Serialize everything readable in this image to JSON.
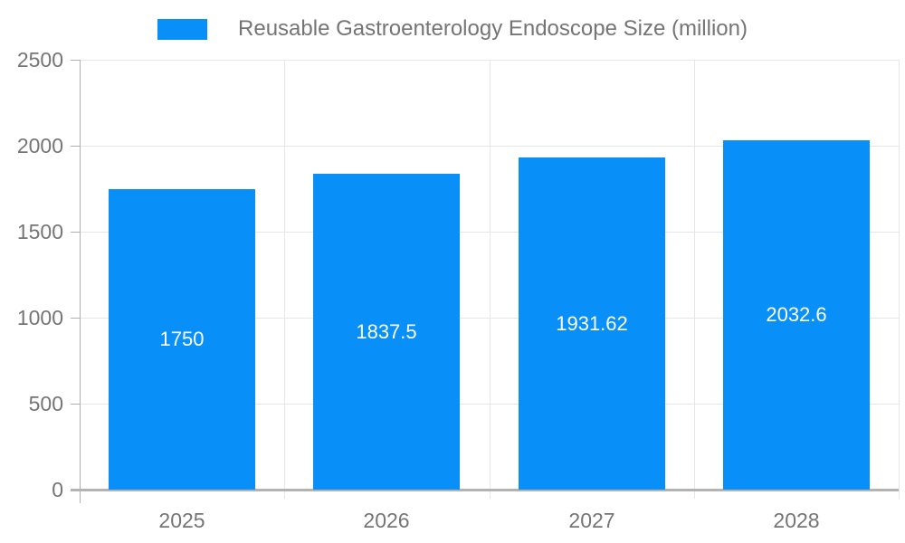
{
  "chart_data": {
    "type": "bar",
    "title": "Reusable Gastroenterology Endoscope Size (million)",
    "categories": [
      "2025",
      "2026",
      "2027",
      "2028"
    ],
    "values": [
      1750,
      1837.5,
      1931.62,
      2032.6
    ],
    "value_labels": [
      "1750",
      "1837.5",
      "1931.62",
      "2032.6"
    ],
    "xlabel": "",
    "ylabel": "",
    "ylim": [
      0,
      2500
    ],
    "y_ticks": [
      0,
      500,
      1000,
      1500,
      2000,
      2500
    ],
    "y_tick_labels": [
      "0",
      "500",
      "1000",
      "1500",
      "2000",
      "2500"
    ],
    "grid": true,
    "legend_position": "top",
    "colors": {
      "bar": "#0990f8",
      "bar_value_text": "#ffffff",
      "axis": "#b0b0b0",
      "baseline": "#b3b3b3",
      "gridline": "#e6e6e6",
      "text": "#757575"
    }
  }
}
